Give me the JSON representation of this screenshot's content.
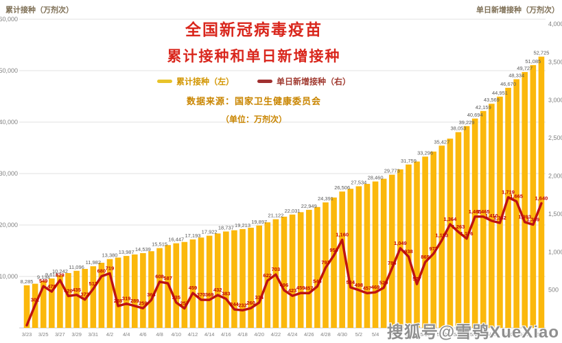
{
  "header": {
    "title_line1": "全国新冠病毒疫苗",
    "title_line2": "累计接种和单日新增接种",
    "source": "数据来源：国家卫生健康委员会",
    "unit_note": "（单位：万剂次）",
    "legend": {
      "bar_label": "累计接种（左）",
      "line_label": "单日新增接种（右）"
    }
  },
  "watermark": "搜狐号@雪鸮XueXiao",
  "colors": {
    "title_red": "#D9261C",
    "bar": "#FBB80C",
    "bar_label": "#595959",
    "line": "#BE1212",
    "line_label": "#C00000",
    "legend_bar_swatch": "#E8C32A",
    "legend_bar_text": "#D29500",
    "legend_line_swatch": "#A03030",
    "legend_line_text": "#A03A30",
    "source_text": "#C98500",
    "axis_title": "#7E6F55",
    "tick_text": "#808080",
    "gridline": "#E0E0E0",
    "baseline": "#C8C8C8"
  },
  "chart_data": {
    "type": "bar+line",
    "title": "全国新冠病毒疫苗累计接种和单日新增接种",
    "grid": true,
    "legend_position": "top",
    "categories": [
      "3/23",
      "3/24",
      "3/25",
      "3/26",
      "3/27",
      "3/28",
      "3/29",
      "3/30",
      "3/31",
      "4/1",
      "4/2",
      "4/3",
      "4/4",
      "4/5",
      "4/6",
      "4/7",
      "4/8",
      "4/9",
      "4/10",
      "4/11",
      "4/12",
      "4/13",
      "4/14",
      "4/15",
      "4/16",
      "4/17",
      "4/18",
      "4/19",
      "4/20",
      "4/21",
      "4/22",
      "4/23",
      "4/24",
      "4/25",
      "4/26",
      "4/27",
      "4/28",
      "4/29",
      "4/30",
      "5/1",
      "5/2",
      "5/3",
      "5/4",
      "5/5",
      "5/6",
      "5/7",
      "5/8",
      "5/9",
      "5/10",
      "5/11",
      "5/12",
      "5/13",
      "5/14",
      "5/15",
      "5/16",
      "5/17",
      "5/18",
      "5/19",
      "5/20",
      "5/21",
      "5/22",
      "5/23",
      "5/24"
    ],
    "x_tick_every": 2,
    "series": [
      {
        "name": "累计接种（左）",
        "type": "bar",
        "axis": "left",
        "values": [
          8285,
          8586,
          9134,
          9612,
          10242,
          10662,
          11096,
          11469,
          11982,
          12662,
          13380,
          13668,
          13987,
          14276,
          14539,
          14907,
          15515,
          16102,
          16447,
          16704,
          17193,
          17563,
          17922,
          18354,
          18737,
          18981,
          19213,
          19473,
          19897,
          20519,
          21122,
          21618,
          22031,
          22490,
          22949,
          23495,
          24391,
          25346,
          26506,
          27040,
          27534,
          27991,
          28460,
          28989,
          29773,
          30822,
          31759,
          32336,
          33296,
          34273,
          35427,
          36791,
          38053,
          39229,
          40694,
          42159,
          43569,
          44951,
          46670,
          48334,
          49727,
          51085,
          52725
        ],
        "labeled_indices": [
          0,
          2,
          3,
          4,
          6,
          8,
          10,
          12,
          14,
          16,
          18,
          20,
          22,
          24,
          26,
          28,
          30,
          32,
          34,
          36,
          38,
          40,
          42,
          44,
          46,
          48,
          50,
          52,
          53,
          54,
          55,
          56,
          57,
          58,
          59,
          60,
          61,
          62
        ]
      },
      {
        "name": "单日新增接种（右）",
        "type": "line",
        "axis": "right",
        "values": [
          35,
          301,
          549,
          478,
          629,
          420,
          435,
          373,
          513,
          680,
          719,
          288,
          319,
          289,
          259,
          368,
          608,
          587,
          335,
          257,
          459,
          370,
          369,
          432,
          383,
          244,
          232,
          260,
          334,
          622,
          703,
          496,
          423,
          459,
          457,
          546,
          793,
          955,
          1160,
          534,
          498,
          457,
          469,
          529,
          784,
          1049,
          938,
          577,
          865,
          977,
          1153,
          1364,
          1263,
          1176,
          1465,
          1465,
          1410,
          1382,
          1719,
          1665,
          1393,
          1359,
          1640
        ],
        "label_skip_indices": [
          0
        ]
      }
    ],
    "left_axis": {
      "label": "累计接种（万剂次）",
      "range": [
        0,
        60000
      ],
      "ticks": [
        10000,
        20000,
        30000,
        40000,
        50000,
        60000
      ]
    },
    "right_axis": {
      "label": "单日新增接种（万剂次）",
      "range": [
        0,
        4000
      ],
      "ticks": [
        500,
        1000,
        1500,
        2000,
        2500,
        3000,
        3500,
        4000
      ]
    }
  }
}
